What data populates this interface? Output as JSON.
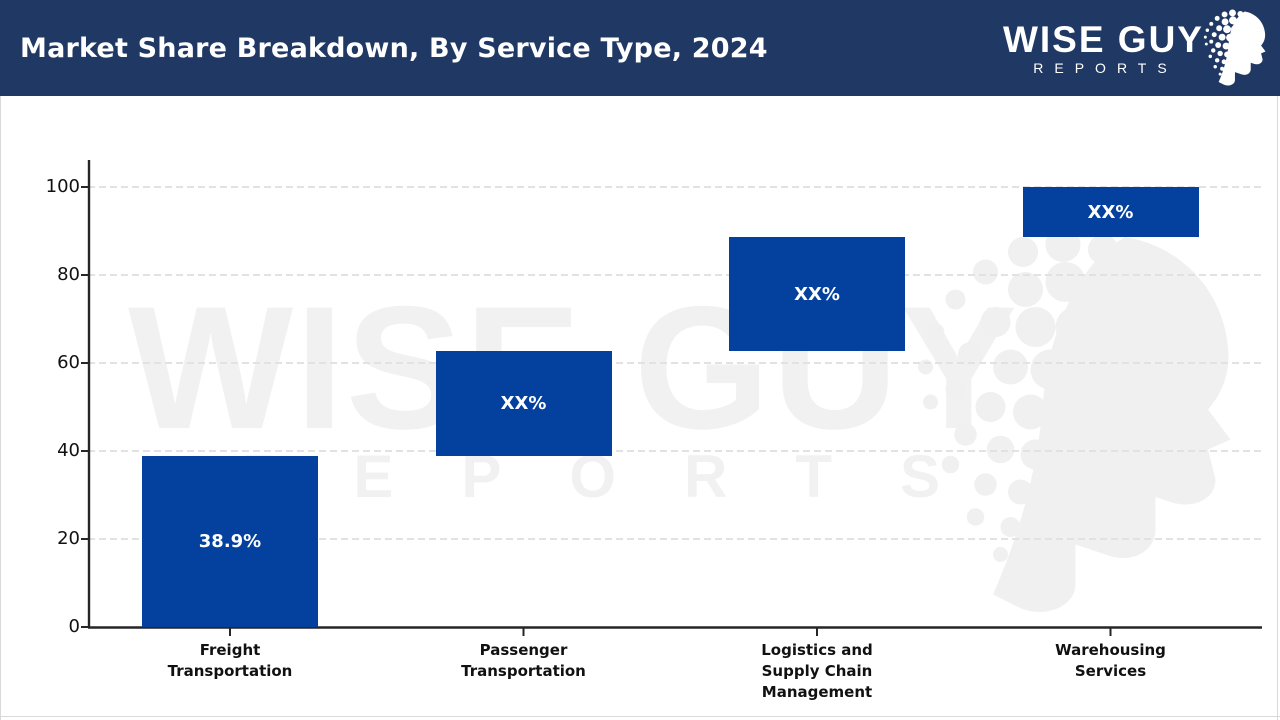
{
  "header": {
    "title": "Market Share Breakdown, By Service Type, 2024",
    "logo": {
      "name": "WISE GUY",
      "tagline": "REPORTS"
    }
  },
  "watermark": {
    "text_top": "WISE GUY",
    "text_bottom": "REPORTS"
  },
  "colors": {
    "header_bg": "#203864",
    "bar_fill": "#04419e",
    "bar_label_text": "#ffffff",
    "axis": "#262626",
    "grid": "#e2e2e2",
    "tick_text": "#111111",
    "watermark": "#f1f1f1",
    "page_border": "#d9d9d9"
  },
  "chart_data": {
    "type": "bar",
    "variant": "waterfall-stacked-breakdown",
    "title": "Market Share Breakdown, By Service Type, 2024",
    "xlabel": "",
    "ylabel": "",
    "ylim": [
      0,
      105
    ],
    "yticks": [
      0,
      20,
      40,
      60,
      80,
      100
    ],
    "grid": "horizontal-dashed",
    "legend": "none",
    "categories": [
      "Freight Transportation",
      "Passenger Transportation",
      "Logistics and Supply Chain Management",
      "Warehousing Services"
    ],
    "category_lines": [
      [
        "Freight",
        "Transportation"
      ],
      [
        "Passenger",
        "Transportation"
      ],
      [
        "Logistics and",
        "Supply Chain",
        "Management"
      ],
      [
        "Warehousing",
        "Services"
      ]
    ],
    "segments": [
      {
        "category": "Freight Transportation",
        "start": 0,
        "end": 38.9,
        "value": 38.9,
        "label": "38.9%"
      },
      {
        "category": "Passenger Transportation",
        "start": 38.9,
        "end": 62.7,
        "value": 23.8,
        "label": "XX%"
      },
      {
        "category": "Logistics and Supply Chain Management",
        "start": 62.7,
        "end": 88.6,
        "value": 25.9,
        "label": "XX%"
      },
      {
        "category": "Warehousing Services",
        "start": 88.6,
        "end": 100,
        "value": 11.4,
        "label": "XX%"
      }
    ]
  }
}
